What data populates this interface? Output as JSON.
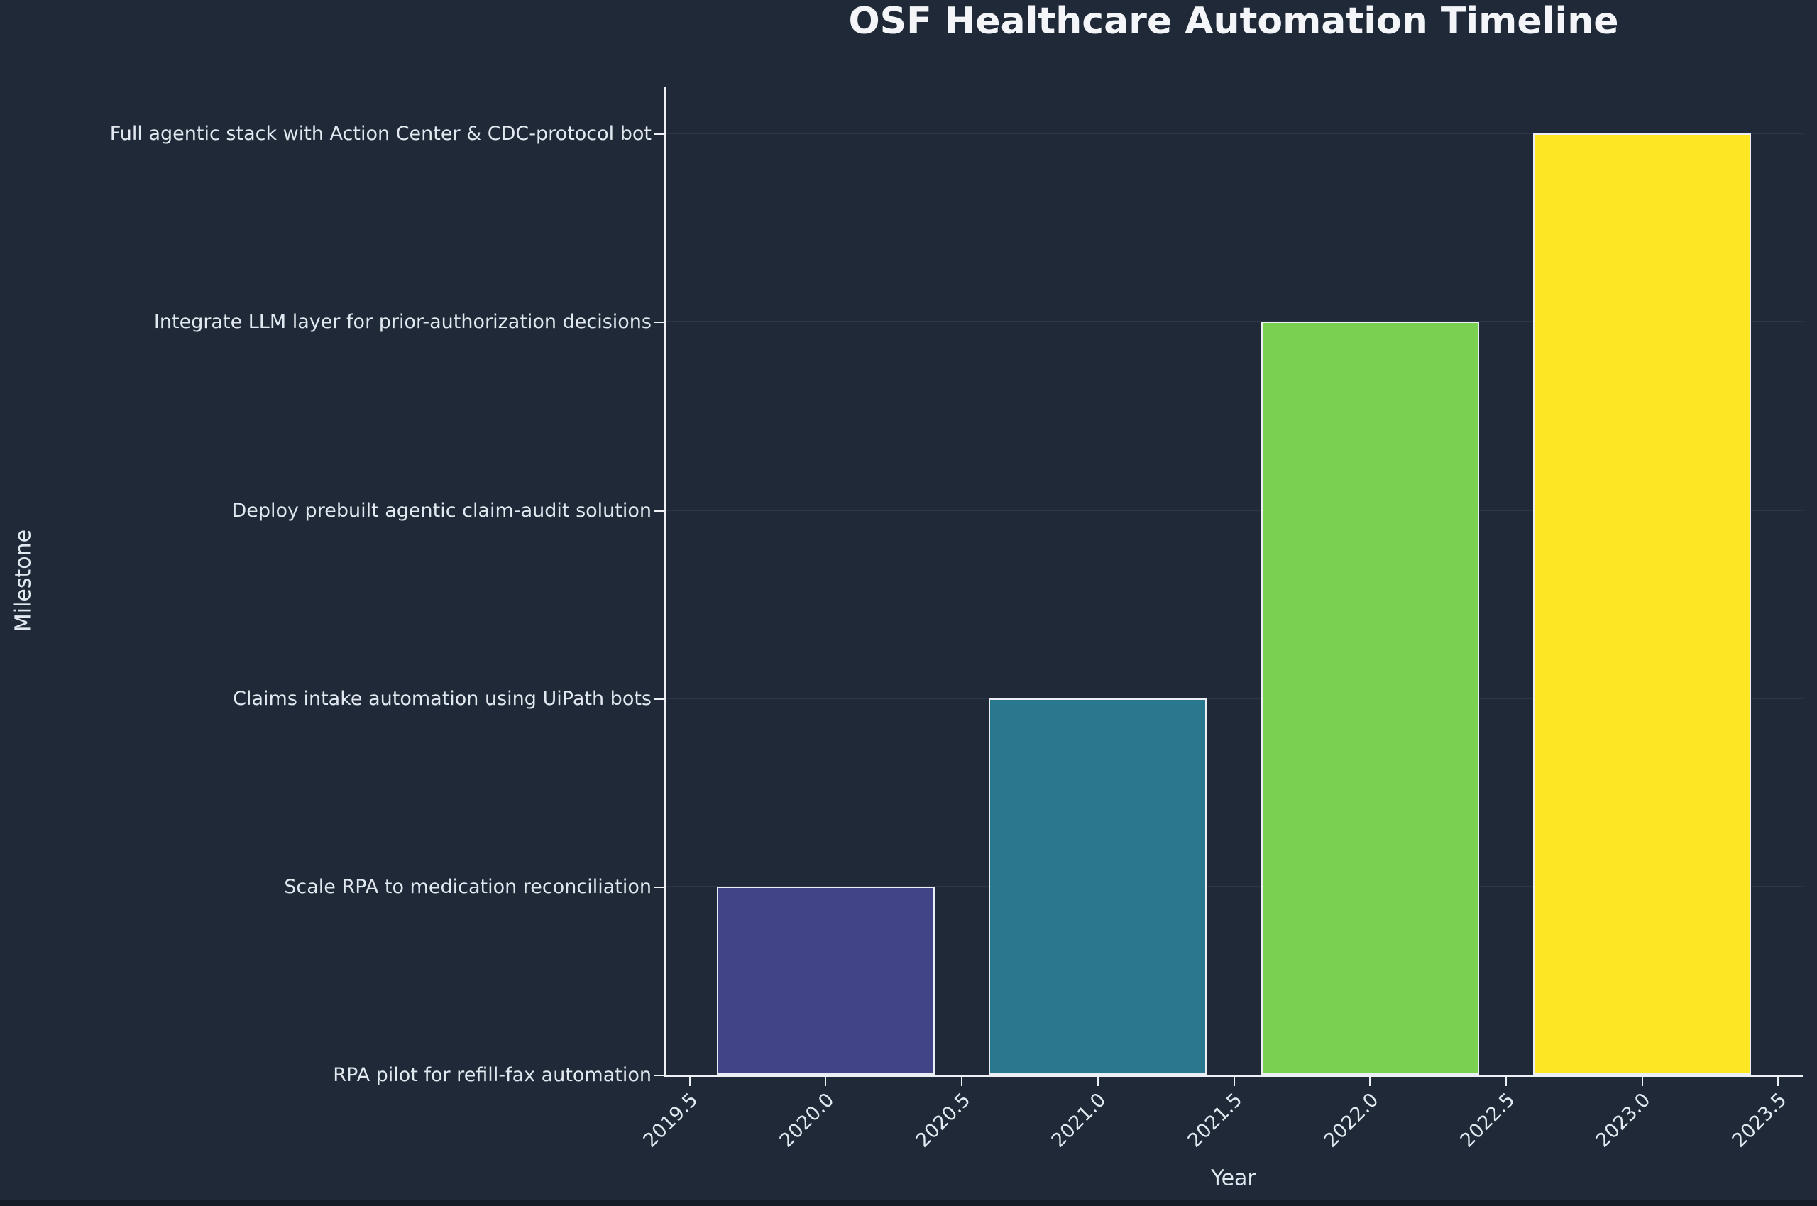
{
  "title": "OSF Healthcare Automation Timeline",
  "chart_data": {
    "type": "bar",
    "orientation": "vertical",
    "title": "OSF Healthcare Automation Timeline",
    "xlabel": "Year",
    "ylabel": "Milestone",
    "categories_note": "y axis is categorical milestone levels 0-5, bottom to top",
    "y_ticks": [
      "RPA pilot for refill-fax automation",
      "Scale RPA to medication reconciliation",
      "Claims intake automation using UiPath bots",
      "Deploy prebuilt agentic claim-audit solution",
      "Integrate LLM layer for prior-authorization decisions",
      "Full agentic stack with Action Center & CDC-protocol bot"
    ],
    "x_tick_labels": [
      "2019.5",
      "2020.0",
      "2020.5",
      "2021.0",
      "2021.5",
      "2022.0",
      "2022.5",
      "2023.0",
      "2023.5"
    ],
    "x_tick_values": [
      2019.5,
      2020.0,
      2020.5,
      2021.0,
      2021.5,
      2022.0,
      2022.5,
      2023.0,
      2023.5
    ],
    "bars": [
      {
        "x": 2020,
        "level": 1,
        "milestone": "Scale RPA to medication reconciliation",
        "color": "#414487"
      },
      {
        "x": 2021,
        "level": 2,
        "milestone": "Claims intake automation using UiPath bots",
        "color": "#2a788e"
      },
      {
        "x": 2022,
        "level": 4,
        "milestone": "Integrate LLM layer for prior-authorization decisions",
        "color": "#7ad151"
      },
      {
        "x": 2023,
        "level": 5,
        "milestone": "Full agentic stack with Action Center & CDC-protocol bot",
        "color": "#fde725"
      }
    ],
    "bar_width": 0.8,
    "xlim": [
      2019.41,
      2023.59
    ],
    "ylim": [
      0,
      5.25
    ],
    "legend": "none",
    "grid": "faint horizontal lines at milestone levels",
    "colors": {
      "background": "#1f2937",
      "axis": "#edf0f4",
      "text": "#e2e8ef",
      "title_text": "#f3f5f8",
      "bar_edge": "#eceef6"
    }
  }
}
